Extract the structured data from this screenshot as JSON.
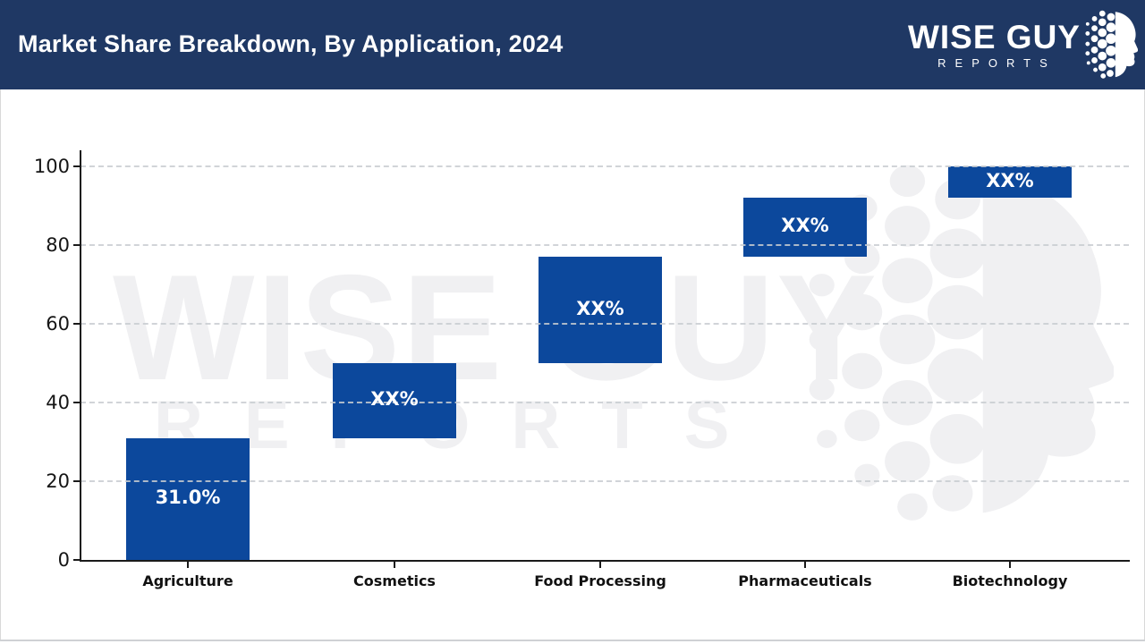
{
  "header": {
    "title": "Market Share Breakdown, By Application, 2024",
    "logo": {
      "line1": "WISE GUY",
      "line2": "REPORTS"
    }
  },
  "watermark": {
    "line1": "WISE GUY",
    "line2": "REPORTS"
  },
  "colors": {
    "header_bg": "#1F3864",
    "title_text": "#FFFFFF",
    "bar": "#0C489C",
    "bar_label": "#FFFFFF",
    "grid": "#C9CDD2",
    "axis": "#1A1A1A",
    "watermark": "#F0F0F2"
  },
  "chart_data": {
    "type": "bar",
    "subtype": "waterfall",
    "title": "Market Share Breakdown, By Application, 2024",
    "categories": [
      "Agriculture",
      "Cosmetics",
      "Food Processing",
      "Pharmaceuticals",
      "Biotechnology"
    ],
    "bars": [
      {
        "category": "Agriculture",
        "start": 0,
        "end": 31,
        "label": "31.0%"
      },
      {
        "category": "Cosmetics",
        "start": 31,
        "end": 50,
        "label": "XX%"
      },
      {
        "category": "Food Processing",
        "start": 50,
        "end": 77,
        "label": "XX%"
      },
      {
        "category": "Pharmaceuticals",
        "start": 77,
        "end": 92,
        "label": "XX%"
      },
      {
        "category": "Biotechnology",
        "start": 92,
        "end": 100,
        "label": "XX%"
      }
    ],
    "yticks": [
      0,
      20,
      40,
      60,
      80,
      100
    ],
    "ylim": [
      0,
      105
    ],
    "xlabel": "",
    "ylabel": "",
    "grid": "horizontal-dashed",
    "legend": "none"
  }
}
